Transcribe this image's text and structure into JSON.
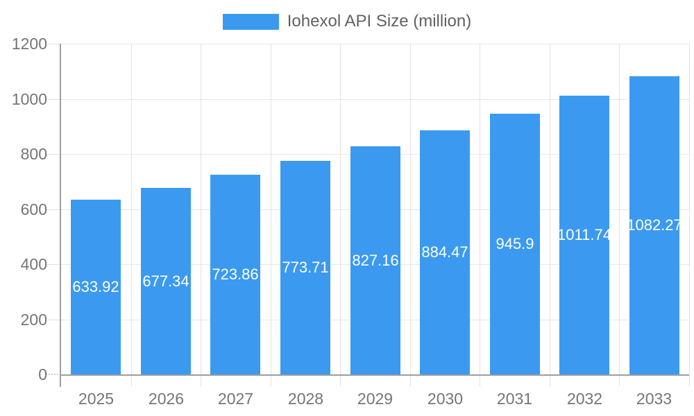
{
  "legend": {
    "label": "Iohexol API Size (million)"
  },
  "chart_data": {
    "type": "bar",
    "title": "",
    "categories": [
      "2025",
      "2026",
      "2027",
      "2028",
      "2029",
      "2030",
      "2031",
      "2032",
      "2033"
    ],
    "series": [
      {
        "name": "Iohexol API Size (million)",
        "values": [
          633.92,
          677.34,
          723.86,
          773.71,
          827.16,
          884.47,
          945.9,
          1011.74,
          1082.27
        ]
      }
    ],
    "value_labels": [
      "633.92",
      "677.34",
      "723.86",
      "773.71",
      "827.16",
      "884.47",
      "945.9",
      "1011.74",
      "1082.27"
    ],
    "xlabel": "",
    "ylabel": "",
    "ylim": [
      0,
      1200
    ],
    "yticks": [
      0,
      200,
      400,
      600,
      800,
      1000,
      1200
    ],
    "grid": true,
    "legend_position": "top",
    "value_label_position": "inside-center",
    "colors": {
      "bar": "#3b9af0",
      "axis_line": "#9e9e9e",
      "gridline": "#e6e6e6",
      "tick_label": "#757575",
      "legend_text": "#616161",
      "value_label": "#ffffff"
    }
  }
}
